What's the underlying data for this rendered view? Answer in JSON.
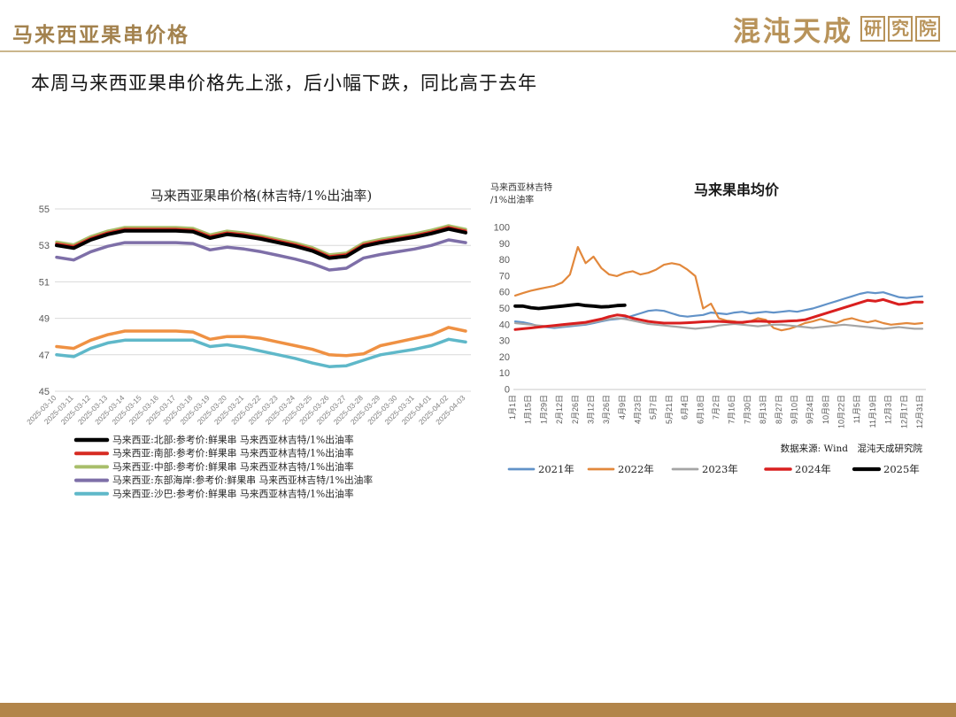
{
  "page": {
    "header": {
      "title": "马来西亚果串价格"
    },
    "logo": {
      "brand": "混沌天成",
      "suffix": "研究院"
    },
    "subtitle": "本周马来西亚果串价格先上涨，后小幅下跌，同比高于去年",
    "colors": {
      "accent_gold": "#a3824e",
      "header_rule": "#cbb68c",
      "footer_bar": "#b2854a"
    }
  },
  "chart_data": [
    {
      "type": "line",
      "title": "马来西亚果串价格(林吉特/1%出油率)",
      "ylabel": "",
      "ylim": [
        45,
        55
      ],
      "yticks": [
        55,
        53,
        51,
        49,
        47,
        45
      ],
      "grid": true,
      "legend_position": "bottom-left",
      "x_labels": [
        "2025-03-10",
        "2025-03-11",
        "2025-03-12",
        "2025-03-13",
        "2025-03-14",
        "2025-03-15",
        "2025-03-16",
        "2025-03-17",
        "2025-03-18",
        "2025-03-19",
        "2025-03-20",
        "2025-03-21",
        "2025-03-22",
        "2025-03-23",
        "2025-03-24",
        "2025-03-25",
        "2025-03-26",
        "2025-03-27",
        "2025-03-28",
        "2025-03-29",
        "2025-03-30",
        "2025-03-31",
        "2025-04-01",
        "2025-04-02",
        "2025-04-03"
      ],
      "series": [
        {
          "name": "马来西亚:北部:参考价:鲜果串 马来西亚林吉特/1%出油率",
          "color": "#000000",
          "width": 4,
          "legend": true,
          "values": [
            53.0,
            52.85,
            53.3,
            53.6,
            53.8,
            53.8,
            53.8,
            53.8,
            53.75,
            53.4,
            53.6,
            53.5,
            53.35,
            53.15,
            52.95,
            52.7,
            52.3,
            52.4,
            52.95,
            53.15,
            53.3,
            53.45,
            53.65,
            53.9,
            53.7
          ]
        },
        {
          "name": "马来西亚:南部:参考价:鲜果串 马来西亚林吉特/1%出油率",
          "color": "#d62b22",
          "width": 3.5,
          "legend": true,
          "values": [
            53.08,
            52.93,
            53.38,
            53.68,
            53.88,
            53.88,
            53.88,
            53.88,
            53.83,
            53.48,
            53.68,
            53.58,
            53.43,
            53.23,
            53.03,
            52.78,
            52.38,
            52.48,
            53.03,
            53.23,
            53.38,
            53.53,
            53.73,
            53.98,
            53.78
          ]
        },
        {
          "name": "马来西亚:中部:参考价:鲜果串 马来西亚林吉特/1%出油率",
          "color": "#a8be6a",
          "width": 3.5,
          "legend": true,
          "values": [
            53.18,
            53.03,
            53.48,
            53.78,
            53.98,
            53.98,
            53.98,
            53.98,
            53.93,
            53.58,
            53.78,
            53.68,
            53.53,
            53.33,
            53.13,
            52.88,
            52.48,
            52.58,
            53.13,
            53.33,
            53.48,
            53.63,
            53.83,
            54.08,
            53.88
          ]
        },
        {
          "name": "马来西亚:东部海岸:参考价:鲜果串 马来西亚林吉特/1%出油率",
          "color": "#7e6fa8",
          "width": 3.5,
          "legend": true,
          "values": [
            52.35,
            52.2,
            52.65,
            52.95,
            53.15,
            53.15,
            53.15,
            53.15,
            53.1,
            52.75,
            52.9,
            52.8,
            52.65,
            52.45,
            52.25,
            52.0,
            51.65,
            51.75,
            52.3,
            52.5,
            52.65,
            52.8,
            53.0,
            53.3,
            53.15
          ]
        },
        {
          "name": "马来西亚:沙巴:参考价:鲜果串 马来西亚林吉特/1%出油率",
          "color": "#5fb8c9",
          "width": 3.5,
          "legend": true,
          "values": [
            47.0,
            46.9,
            47.35,
            47.65,
            47.8,
            47.8,
            47.8,
            47.8,
            47.8,
            47.45,
            47.55,
            47.4,
            47.2,
            47.0,
            46.8,
            46.55,
            46.35,
            46.4,
            46.7,
            47.0,
            47.15,
            47.3,
            47.5,
            47.85,
            47.7
          ]
        },
        {
          "name": "",
          "color": "#ef9143",
          "width": 3.5,
          "legend": false,
          "values": [
            47.45,
            47.35,
            47.8,
            48.1,
            48.3,
            48.3,
            48.3,
            48.3,
            48.25,
            47.85,
            48.0,
            48.0,
            47.9,
            47.7,
            47.5,
            47.3,
            47.0,
            46.95,
            47.05,
            47.5,
            47.7,
            47.9,
            48.1,
            48.5,
            48.3
          ]
        }
      ]
    },
    {
      "type": "line",
      "title": "马来果串均价",
      "y_axis_label_lines": [
        "马来西亚林吉特",
        "/1%出油率"
      ],
      "ylim": [
        0,
        100
      ],
      "yticks": [
        100,
        90,
        80,
        70,
        60,
        50,
        40,
        30,
        20,
        10,
        0
      ],
      "grid": false,
      "legend_position": "bottom",
      "source_note": "数据来源: Wind　混沌天成研究院",
      "x_tick_labels": [
        "1月1日",
        "1月15日",
        "1月29日",
        "2月12日",
        "2月26日",
        "3月12日",
        "3月26日",
        "4月9日",
        "4月23日",
        "5月7日",
        "5月21日",
        "6月4日",
        "6月18日",
        "7月2日",
        "7月16日",
        "7月30日",
        "8月13日",
        "8月27日",
        "9月10日",
        "9月24日",
        "10月8日",
        "10月22日",
        "11月5日",
        "11月19日",
        "12月3日",
        "12月17日",
        "12月31日"
      ],
      "points_per_year": 53,
      "series": [
        {
          "name": "2021年",
          "color": "#6192c8",
          "width": 2.2,
          "legend": true,
          "values": [
            42,
            41.5,
            40.5,
            39,
            38.5,
            38,
            38.5,
            39,
            39.5,
            40,
            41,
            42,
            43,
            43.5,
            44,
            45.5,
            47,
            48.5,
            49,
            48.5,
            47,
            45.5,
            45,
            45.5,
            46,
            47.5,
            47,
            46.5,
            47.5,
            48,
            47,
            47.5,
            48,
            47.5,
            48,
            48.5,
            48,
            49,
            50,
            51.5,
            53,
            54.5,
            56,
            57.5,
            59,
            60,
            59.5,
            60,
            58.5,
            57,
            56.5,
            57,
            57.5
          ]
        },
        {
          "name": "2022年",
          "color": "#e2883c",
          "width": 2.2,
          "legend": true,
          "values": [
            58,
            59.5,
            61,
            62,
            63,
            64,
            66,
            71,
            88,
            78,
            82,
            75,
            71,
            70,
            72,
            73,
            71,
            72,
            74,
            77,
            78,
            77,
            74,
            70,
            50,
            53,
            44,
            42.5,
            42,
            41,
            42,
            44,
            43,
            38,
            36.5,
            37.5,
            39,
            41,
            42,
            43.5,
            42,
            41,
            43,
            44,
            42.5,
            41.5,
            42.5,
            41,
            40,
            40.5,
            41,
            40.5,
            41
          ]
        },
        {
          "name": "2023年",
          "color": "#a5a5a5",
          "width": 2.2,
          "legend": true,
          "values": [
            41,
            40.5,
            40,
            39.5,
            39,
            38.5,
            39,
            39.5,
            40,
            40.5,
            41.5,
            42.5,
            43.5,
            44,
            43.5,
            42.5,
            41.5,
            40.5,
            40,
            39.5,
            39,
            38.5,
            38,
            37.5,
            38,
            38.5,
            39.5,
            40,
            40.5,
            40,
            39.5,
            39,
            39.5,
            40,
            40,
            39.5,
            39,
            38.5,
            38,
            38.5,
            39,
            39.5,
            40,
            39.5,
            39,
            38.5,
            38,
            37.5,
            38,
            38.5,
            38,
            37.5,
            37.5
          ]
        },
        {
          "name": "2024年",
          "color": "#d91f1f",
          "width": 3,
          "legend": true,
          "values": [
            37,
            37.5,
            38,
            38.5,
            39,
            39.5,
            40,
            40.5,
            41,
            41.5,
            42.5,
            43.5,
            45,
            46,
            45.5,
            44,
            43,
            42,
            41.5,
            41,
            41,
            41,
            41.2,
            41.5,
            41.8,
            42,
            42,
            41.8,
            41.5,
            41.5,
            42,
            42.2,
            42,
            41.8,
            42,
            42.3,
            42.5,
            43,
            44.5,
            46,
            47.5,
            49,
            50.5,
            52,
            53.5,
            55,
            54.5,
            55.5,
            54,
            52.5,
            53,
            54,
            54
          ]
        },
        {
          "name": "2025年",
          "color": "#000000",
          "width": 3.8,
          "legend": true,
          "values": [
            51.5,
            51.5,
            50.5,
            50,
            50.5,
            51,
            51.5,
            52,
            52.5,
            51.8,
            51.5,
            51,
            51.2,
            51.8,
            52
          ]
        }
      ]
    }
  ]
}
